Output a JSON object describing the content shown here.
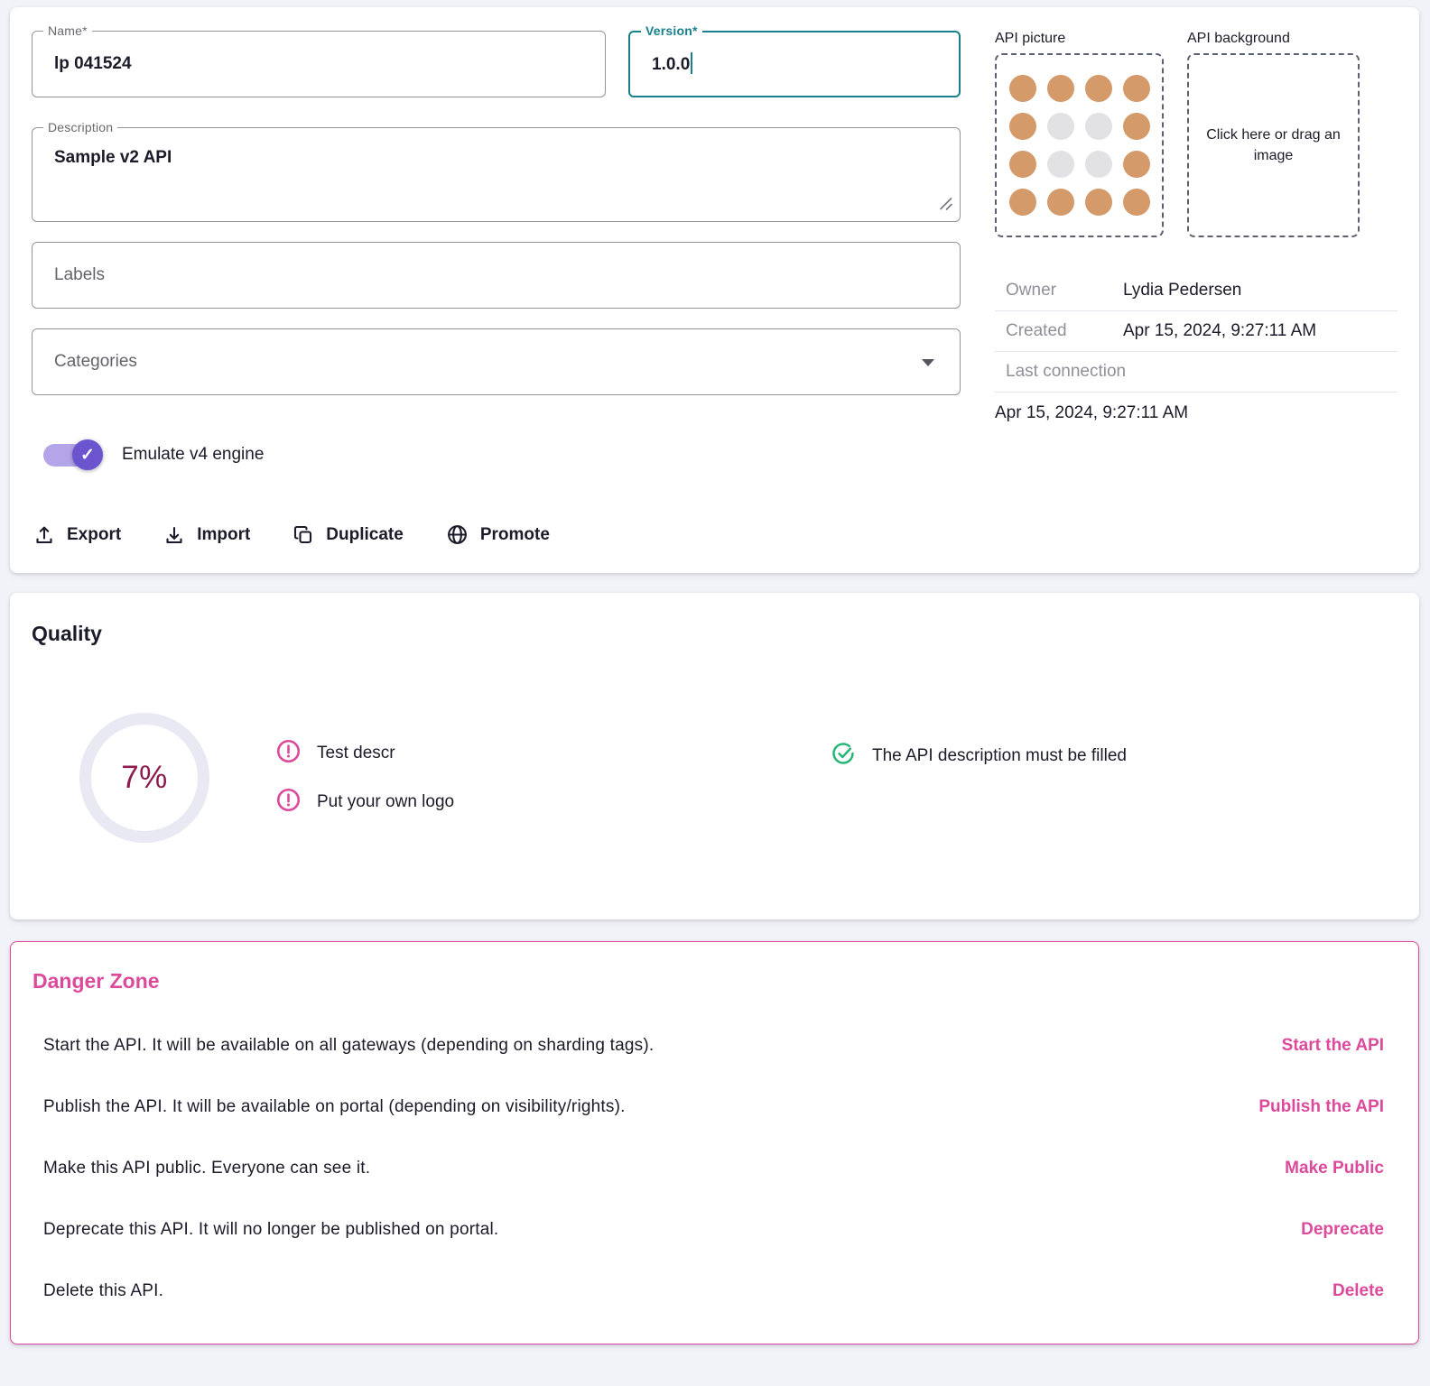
{
  "colors": {
    "accent_teal": "#17808c",
    "danger_pink": "#dc4a9c",
    "toggle_purple": "#6b54cd",
    "toggle_track": "#b4a5e9",
    "score_maroon": "#8a1c4f",
    "success_green": "#22b573",
    "avatar_tan": "#d49a6a",
    "avatar_gray": "#e2e2e5"
  },
  "form": {
    "name": {
      "label": "Name*",
      "value": "lp 041524"
    },
    "version": {
      "label": "Version*",
      "value": "1.0.0"
    },
    "description": {
      "label": "Description",
      "value": "Sample v2 API"
    },
    "labels": {
      "placeholder": "Labels"
    },
    "categories": {
      "placeholder": "Categories"
    },
    "toggle": {
      "label": "Emulate v4 engine",
      "state": "on"
    },
    "actions": [
      {
        "label": "Export",
        "icon": "upload-icon"
      },
      {
        "label": "Import",
        "icon": "download-icon"
      },
      {
        "label": "Duplicate",
        "icon": "copy-icon"
      },
      {
        "label": "Promote",
        "icon": "globe-icon"
      }
    ]
  },
  "media": {
    "picture_label": "API picture",
    "background_label": "API background",
    "background_hint": "Click here or drag an image"
  },
  "avatar": {
    "pattern": [
      "t",
      "t",
      "t",
      "t",
      "t",
      "g",
      "g",
      "t",
      "t",
      "g",
      "g",
      "t",
      "t",
      "t",
      "t",
      "t"
    ]
  },
  "meta": {
    "owner_label": "Owner",
    "owner_value": "Lydia Pedersen",
    "created_label": "Created",
    "created_value": "Apr 15, 2024, 9:27:11 AM",
    "last_connection_label": "Last connection",
    "last_connection_value": "Apr 15, 2024, 9:27:11 AM"
  },
  "quality": {
    "title": "Quality",
    "score": "7%",
    "warnings": [
      "Test descr",
      "Put your own logo"
    ],
    "passed": [
      "The API description must be filled"
    ]
  },
  "danger": {
    "title": "Danger Zone",
    "rows": [
      {
        "text": "Start the API. It will be available on all gateways (depending on sharding tags).",
        "action": "Start the API"
      },
      {
        "text": "Publish the API. It will be available on portal (depending on visibility/rights).",
        "action": "Publish the API"
      },
      {
        "text": "Make this API public. Everyone can see it.",
        "action": "Make Public"
      },
      {
        "text": "Deprecate this API. It will no longer be published on portal.",
        "action": "Deprecate"
      },
      {
        "text": "Delete this API.",
        "action": "Delete"
      }
    ]
  }
}
